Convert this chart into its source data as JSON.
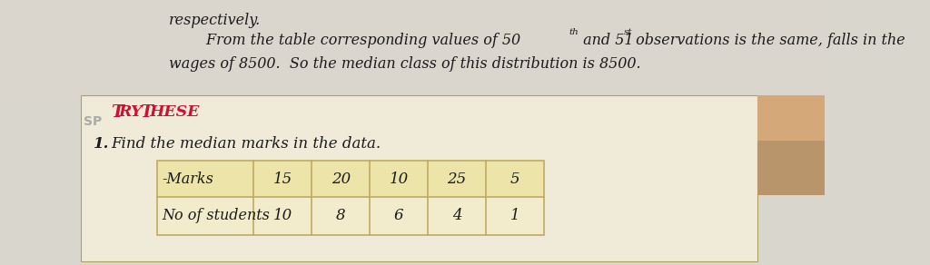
{
  "line1": "respectively.",
  "line2a": "        From the table corresponding values of 50",
  "line2_sup1": "th",
  "line2b": " and 51",
  "line2_sup2": "st",
  "line2c": " observations is the same, falls in the",
  "line3": "wages of 8500.  So the median class of this distribution is 8500.",
  "try_label": "Try ",
  "these_label": "These",
  "question": "Find the median marks in the data.",
  "question_num": "1.",
  "col_headers": [
    "-Marks",
    "15",
    "20",
    "10",
    "25",
    "5"
  ],
  "row2_label": "No of students",
  "row2_vals": [
    "10",
    "8",
    "6",
    "4",
    "1"
  ],
  "bg_page": "#d9d6cd",
  "bg_yellow": "#f0ead8",
  "bg_yellow_dark": "#e8dfa8",
  "border_color": "#c0aa60",
  "text_dark": "#1a1a1a",
  "text_gray": "#888888",
  "text_red": "#cc1133",
  "font_size_main": 11.5,
  "font_size_table": 11.5,
  "font_size_title": 13.5
}
